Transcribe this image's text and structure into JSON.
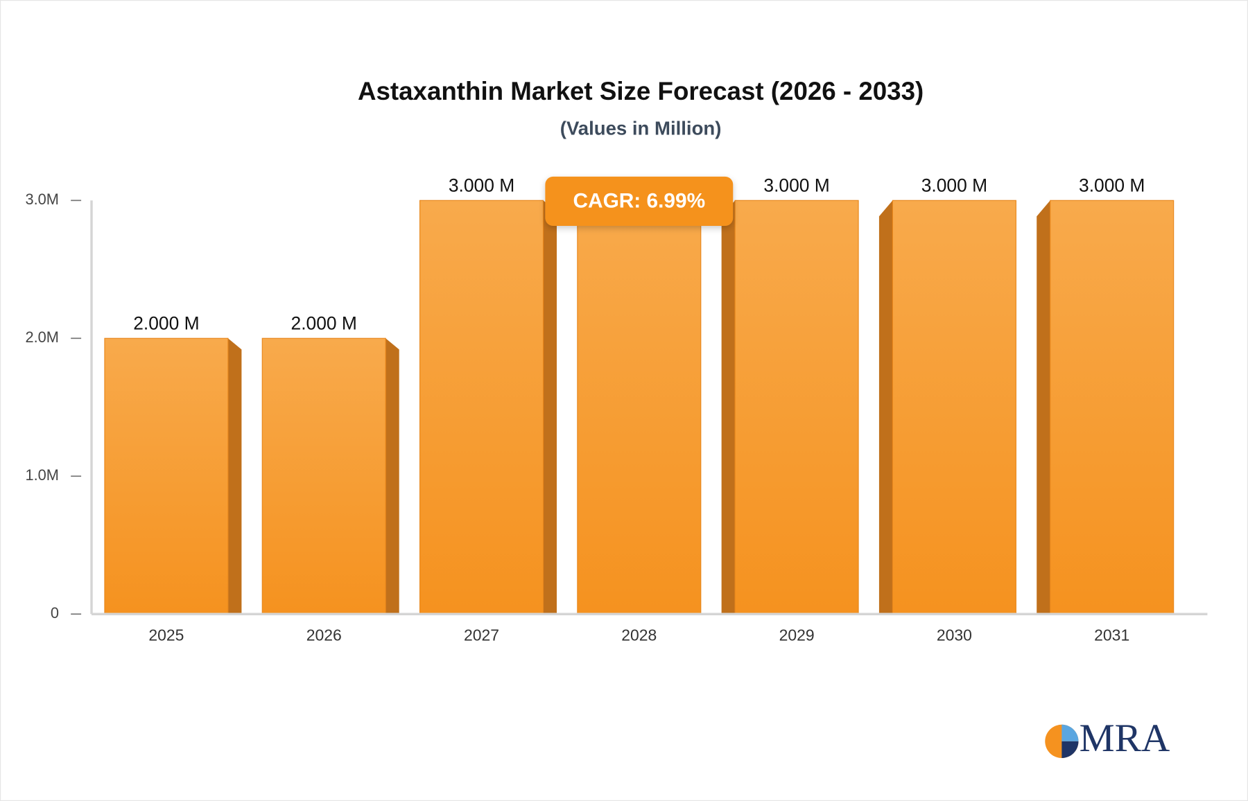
{
  "chart_data": {
    "type": "bar",
    "title": "Astaxanthin Market Size Forecast (2026 - 2033)",
    "subtitle": "(Values in Million)",
    "categories": [
      "2025",
      "2026",
      "2027",
      "2028",
      "2029",
      "2030",
      "2031"
    ],
    "values": [
      2000000,
      2000000,
      3000000,
      3000000,
      3000000,
      3000000,
      3000000
    ],
    "value_labels": [
      "2.000 M",
      "2.000 M",
      "3.000 M",
      null,
      "3.000 M",
      "3.000 M",
      "3.000 M"
    ],
    "color": "#f7a13a",
    "ylim": [
      0,
      3000000
    ],
    "yticks": [
      0,
      {
        "value": 1000000,
        "label": "1.0M"
      },
      {
        "value": 2000000,
        "label": "2.0M"
      },
      {
        "value": 3000000,
        "label": "3.0M"
      }
    ],
    "annotation": "CAGR: 6.99%",
    "logo": "MRA"
  }
}
